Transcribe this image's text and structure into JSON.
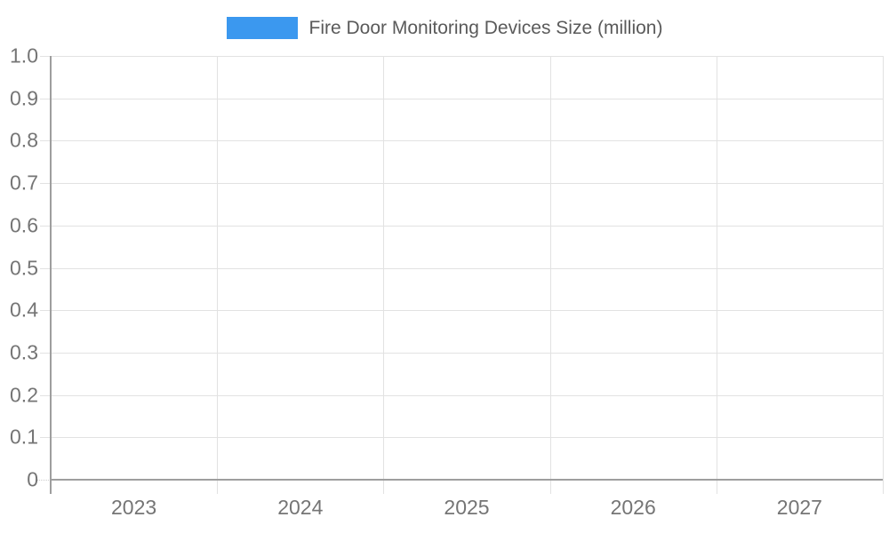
{
  "legend": {
    "label": "Fire Door Monitoring Devices Size (million)",
    "swatch_color": "#3b98ef"
  },
  "chart_data": {
    "type": "bar",
    "title": "Fire Door Monitoring Devices Size (million)",
    "categories": [
      "2023",
      "2024",
      "2025",
      "2026",
      "2027"
    ],
    "values": [
      null,
      null,
      null,
      null,
      null
    ],
    "values_note": "no bars are rendered in the plot (empty / zero-value series)",
    "series_color": "#3b98ef",
    "xlabel": "",
    "ylabel": "",
    "ylim": [
      0,
      1.0
    ],
    "ytick_step": 0.1,
    "ytick_labels_top_to_bottom": [
      "1.0",
      "0.9",
      "0.8",
      "0.7",
      "0.6",
      "0.5",
      "0.4",
      "0.3",
      "0.2",
      "0.1",
      "0"
    ],
    "grid": true,
    "legend_position": "top-center"
  },
  "colors": {
    "background": "#ffffff",
    "gridline": "#e2e2e2",
    "axis_line": "#9e9e9e",
    "tick_label": "#757575",
    "legend_text": "#5a5a5a",
    "series_blue": "#3b98ef"
  }
}
